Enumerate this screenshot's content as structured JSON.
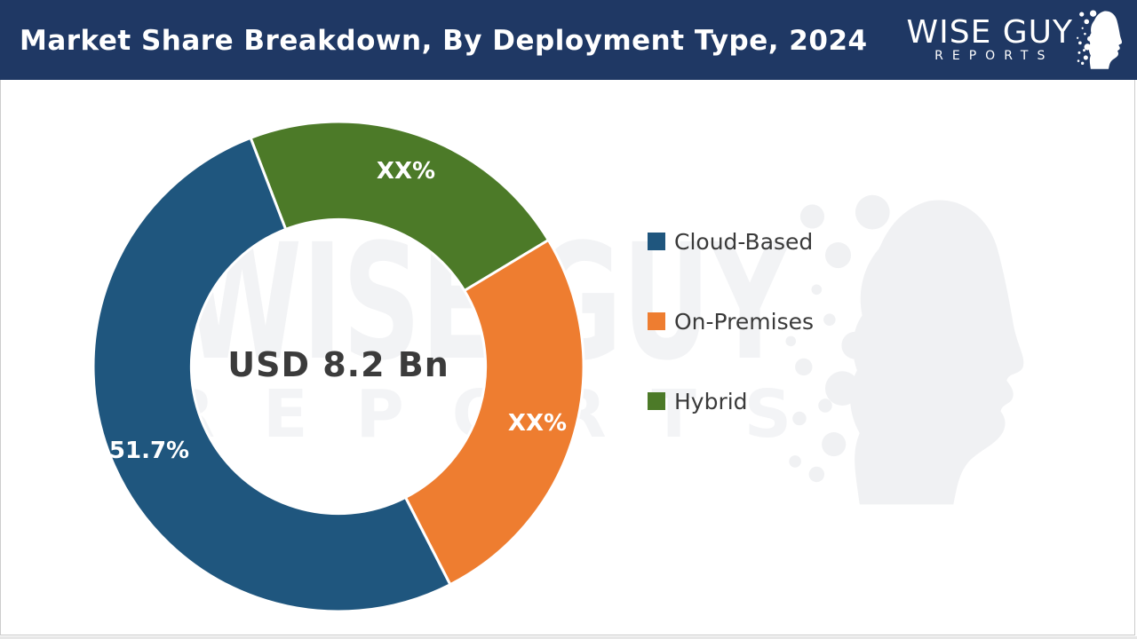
{
  "header": {
    "title": "Market Share Breakdown, By Deployment Type, 2024",
    "bg_color": "#1F3864",
    "logo": {
      "line1": "WISE GUY",
      "line2": "REPORTS"
    }
  },
  "watermark": {
    "line1": "WISE GUY",
    "line2": "REPORTS"
  },
  "chart_data": {
    "type": "pie",
    "subtype": "donut",
    "title": "Market Share Breakdown, By Deployment Type, 2024",
    "center_label": "USD 8.2 Bn",
    "start_angle_deg": -21,
    "inner_radius_ratio": 0.6,
    "segments": [
      {
        "label": "Hybrid",
        "display_value": "XX%",
        "percent": 22.2,
        "color": "#4C7A28"
      },
      {
        "label": "On-Premises",
        "display_value": "XX%",
        "percent": 26.1,
        "color": "#EE7D30"
      },
      {
        "label": "Cloud-Based",
        "display_value": "51.7%",
        "percent": 51.7,
        "color": "#1F567E"
      }
    ],
    "legend": [
      {
        "label": "Cloud-Based",
        "color": "#1F567E"
      },
      {
        "label": "On-Premises",
        "color": "#EE7D30"
      },
      {
        "label": "Hybrid",
        "color": "#4C7A28"
      }
    ],
    "legend_position": "right",
    "label_color": "#ffffff",
    "center_label_color": "#3B3B3B"
  }
}
